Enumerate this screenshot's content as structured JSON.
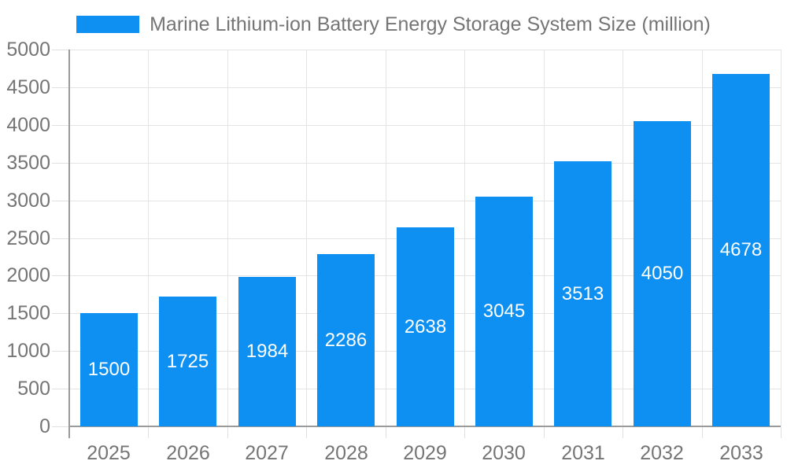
{
  "chart_data": {
    "type": "bar",
    "legend": "Marine Lithium-ion Battery Energy Storage System Size (million)",
    "legend_position": "top",
    "categories": [
      "2025",
      "2026",
      "2027",
      "2028",
      "2029",
      "2030",
      "2031",
      "2032",
      "2033"
    ],
    "values": [
      1500,
      1725,
      1984,
      2286,
      2638,
      3045,
      3513,
      4050,
      4678
    ],
    "value_labels_inside_bars": true,
    "xlabel": "",
    "ylabel": "",
    "ylim": [
      0,
      5000
    ],
    "ytick_step": 500,
    "grid": true,
    "colors": {
      "bar": "#0d90f2",
      "bar_value_text": "#ffffff",
      "axis_text": "#757575",
      "axis_line": "#9a9a9a",
      "gridline": "#e4e4e4",
      "background": "#ffffff"
    }
  }
}
